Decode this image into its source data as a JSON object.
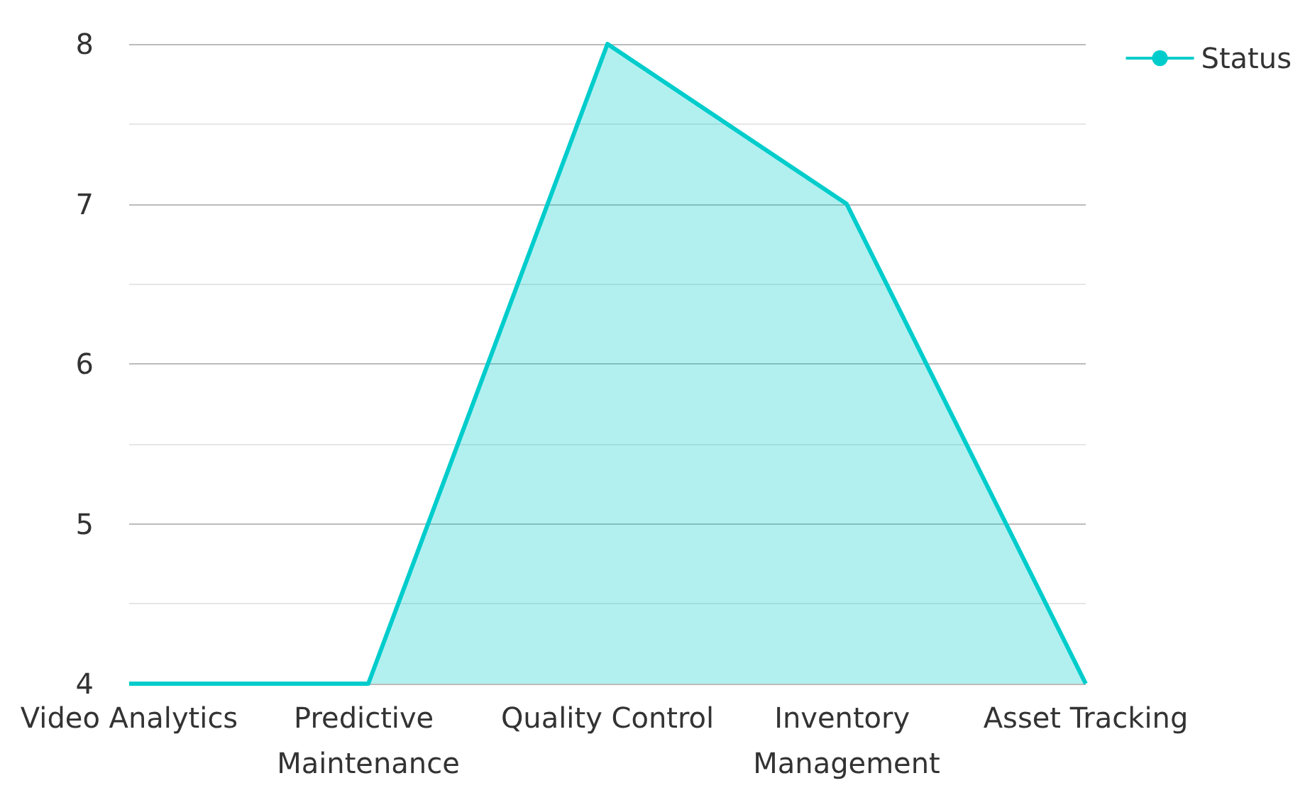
{
  "chart_data": {
    "type": "area",
    "categories": [
      "Video Analytics",
      "Predictive Maintenance",
      "Quality Control",
      "Inventory Management",
      "Asset Tracking"
    ],
    "series": [
      {
        "name": "Status",
        "color": "#00cccc",
        "values": [
          4,
          4,
          8,
          7,
          4
        ]
      }
    ],
    "ylim": [
      4,
      8
    ],
    "yticks": [
      4,
      5,
      6,
      7,
      8
    ],
    "grid": "y",
    "legend": "top right",
    "marker": "none",
    "line_style": "solid"
  }
}
